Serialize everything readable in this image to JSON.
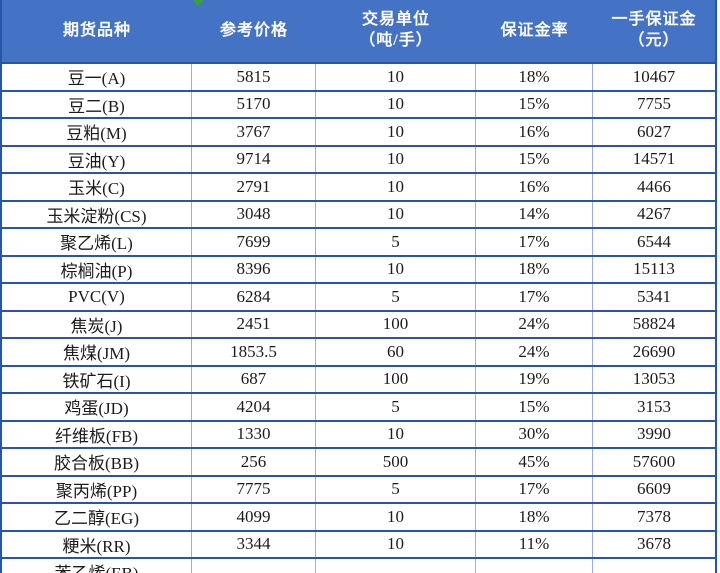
{
  "table": {
    "headers": [
      "期货品种",
      "参考价格",
      "交易单位\n（吨/手）",
      "保证金率",
      "一手保证金\n（元）"
    ],
    "rows": [
      {
        "variety": "豆一(A)",
        "price": "5815",
        "unit": "10",
        "margin_rate": "18%",
        "margin": "10467"
      },
      {
        "variety": "豆二(B)",
        "price": "5170",
        "unit": "10",
        "margin_rate": "15%",
        "margin": "7755"
      },
      {
        "variety": "豆粕(M)",
        "price": "3767",
        "unit": "10",
        "margin_rate": "16%",
        "margin": "6027"
      },
      {
        "variety": "豆油(Y)",
        "price": "9714",
        "unit": "10",
        "margin_rate": "15%",
        "margin": "14571"
      },
      {
        "variety": "玉米(C)",
        "price": "2791",
        "unit": "10",
        "margin_rate": "16%",
        "margin": "4466"
      },
      {
        "variety": "玉米淀粉(CS)",
        "price": "3048",
        "unit": "10",
        "margin_rate": "14%",
        "margin": "4267"
      },
      {
        "variety": "聚乙烯(L)",
        "price": "7699",
        "unit": "5",
        "margin_rate": "17%",
        "margin": "6544"
      },
      {
        "variety": "棕榈油(P)",
        "price": "8396",
        "unit": "10",
        "margin_rate": "18%",
        "margin": "15113"
      },
      {
        "variety": "PVC(V)",
        "price": "6284",
        "unit": "5",
        "margin_rate": "17%",
        "margin": "5341"
      },
      {
        "variety": "焦炭(J)",
        "price": "2451",
        "unit": "100",
        "margin_rate": "24%",
        "margin": "58824"
      },
      {
        "variety": "焦煤(JM)",
        "price": "1853.5",
        "unit": "60",
        "margin_rate": "24%",
        "margin": "26690"
      },
      {
        "variety": "铁矿石(I)",
        "price": "687",
        "unit": "100",
        "margin_rate": "19%",
        "margin": "13053"
      },
      {
        "variety": "鸡蛋(JD)",
        "price": "4204",
        "unit": "5",
        "margin_rate": "15%",
        "margin": "3153"
      },
      {
        "variety": "纤维板(FB)",
        "price": "1330",
        "unit": "10",
        "margin_rate": "30%",
        "margin": "3990"
      },
      {
        "variety": "胶合板(BB)",
        "price": "256",
        "unit": "500",
        "margin_rate": "45%",
        "margin": "57600"
      },
      {
        "variety": "聚丙烯(PP)",
        "price": "7775",
        "unit": "5",
        "margin_rate": "17%",
        "margin": "6609"
      },
      {
        "variety": "乙二醇(EG)",
        "price": "4099",
        "unit": "10",
        "margin_rate": "18%",
        "margin": "7378"
      },
      {
        "variety": "粳米(RR)",
        "price": "3344",
        "unit": "10",
        "margin_rate": "11%",
        "margin": "3678"
      },
      {
        "variety": "苯乙烯(EB)",
        "price": "",
        "unit": "",
        "margin_rate": "",
        "margin": ""
      }
    ]
  },
  "colors": {
    "header_bg": "#4472c4",
    "header_text": "#ffffff",
    "row_separator": "#2a55a4",
    "column_separator": "#9cade0",
    "body_text": "#1b1b1b",
    "corner_marker_green": "#3aa13a"
  }
}
